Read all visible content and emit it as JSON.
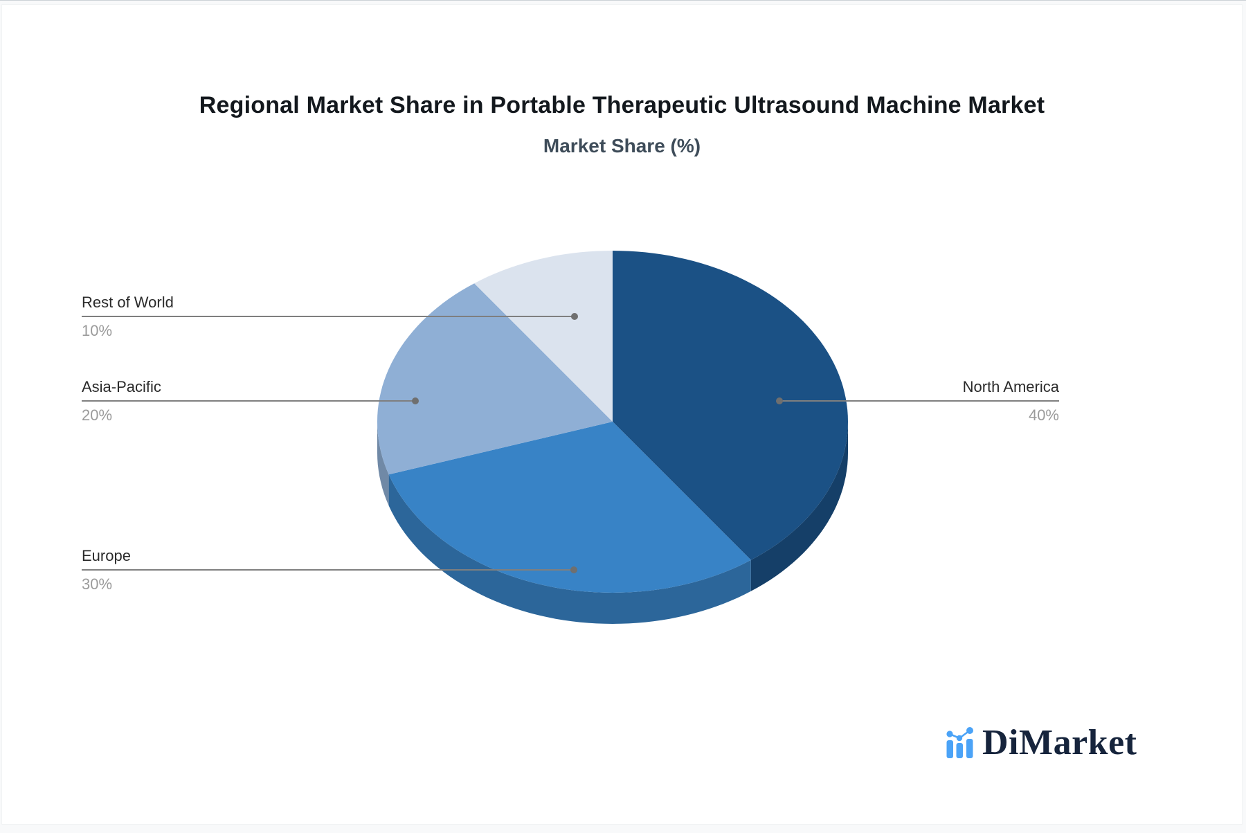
{
  "page": {
    "background": "#f8f9fa",
    "card_background": "#ffffff"
  },
  "header": {
    "title": "Regional Market Share in Portable Therapeutic Ultrasound Machine Market",
    "subtitle": "Market Share (%)"
  },
  "chart_data": {
    "type": "pie",
    "style": "3d",
    "title": "Regional Market Share in Portable Therapeutic Ultrasound Machine Market",
    "subtitle": "Market Share (%)",
    "unit": "%",
    "start_angle_deg": 0,
    "direction": "clockwise",
    "legend": "none",
    "labels": "callout-lines-with-name-and-percent",
    "slices": [
      {
        "label": "North America",
        "value": 40,
        "pct_label": "40%",
        "color": "#1B5185",
        "callout_side": "right"
      },
      {
        "label": "Europe",
        "value": 30,
        "pct_label": "30%",
        "color": "#3883C6",
        "callout_side": "left"
      },
      {
        "label": "Asia-Pacific",
        "value": 20,
        "pct_label": "20%",
        "color": "#8FAFD5",
        "callout_side": "left"
      },
      {
        "label": "Rest of World",
        "value": 10,
        "pct_label": "10%",
        "color": "#DBE3EE",
        "callout_side": "left"
      }
    ],
    "callout_style": {
      "name_color": "#2b2b2b",
      "pct_color": "#9b9b9b",
      "line_color": "#7f7f7f"
    }
  },
  "branding": {
    "logo_text": "DiMarket",
    "logo_icon": "bar-chart-trend-icon",
    "logo_icon_color": "#4BA3F7",
    "logo_text_color": "#16243c"
  }
}
